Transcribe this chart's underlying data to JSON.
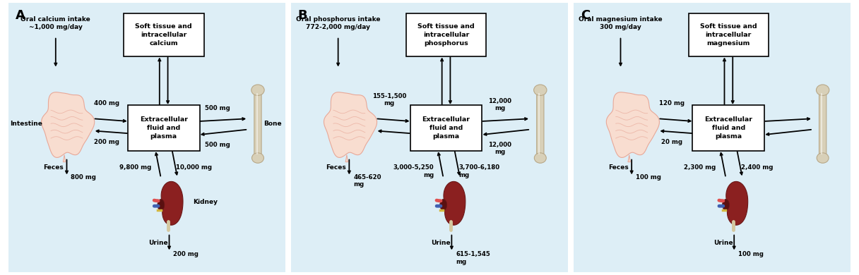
{
  "panels": [
    {
      "label": "A",
      "bg_color": "#ddeef6",
      "oral_intake": "Oral calcium intake\n~1,000 mg/day",
      "soft_tissue_box": "Soft tissue and\nintracellular\ncalcium",
      "ecf_box": "Extracellular\nfluid and\nplasma",
      "intestine_label": "Intestine",
      "bone_label": "Bone",
      "kidney_label": "Kidney",
      "feces_label": "Feces",
      "feces_val": "800 mg",
      "urine_label": "Urine",
      "urine_val": "200 mg",
      "int_to_ecf": "400 mg",
      "ecf_to_int": "200 mg",
      "ecf_to_bone": "500 mg",
      "bone_to_ecf": "500 mg",
      "ecf_to_kidney": "10,000 mg",
      "kidney_to_ecf": "9,800 mg",
      "show_intestine_label": true,
      "show_bone_label": true,
      "show_kidney_label": true
    },
    {
      "label": "B",
      "bg_color": "#ddeef6",
      "oral_intake": "Oral phosphorus intake\n772-2,000 mg/day",
      "soft_tissue_box": "Soft tissue and\nintracellular\nphosphorus",
      "ecf_box": "Extracellular\nfluid and\nplasma",
      "intestine_label": "",
      "bone_label": "",
      "kidney_label": "",
      "feces_label": "Feces",
      "feces_val": "465-620\nmg",
      "urine_label": "Urine",
      "urine_val": "615-1,545\nmg",
      "int_to_ecf": "155-1,500\nmg",
      "ecf_to_int": "",
      "ecf_to_bone": "12,000\nmg",
      "bone_to_ecf": "12,000\nmg",
      "ecf_to_kidney": "3,700-6,180\nmg",
      "kidney_to_ecf": "3,000-5,250\nmg",
      "show_intestine_label": false,
      "show_bone_label": false,
      "show_kidney_label": false
    },
    {
      "label": "C",
      "bg_color": "#ddeef6",
      "oral_intake": "Oral magnesium intake\n300 mg/day",
      "soft_tissue_box": "Soft tissue and\nintracellular\nmagnesium",
      "ecf_box": "Extracellular\nfluid and\nplasma",
      "intestine_label": "",
      "bone_label": "",
      "kidney_label": "",
      "feces_label": "Feces",
      "feces_val": "100 mg",
      "urine_label": "Urine",
      "urine_val": "100 mg",
      "int_to_ecf": "120 mg",
      "ecf_to_int": "20 mg",
      "ecf_to_bone": "",
      "bone_to_ecf": "",
      "ecf_to_kidney": "2,400 mg",
      "kidney_to_ecf": "2,300 mg",
      "show_intestine_label": false,
      "show_bone_label": false,
      "show_kidney_label": false
    }
  ],
  "intestine_color_outer": "#e8a898",
  "intestine_color_inner": "#f5c8b8",
  "intestine_color_fill": "#f8ddd0",
  "bone_color": "#d8d0b8",
  "bone_edge": "#b8a888",
  "kidney_color": "#8b2020",
  "kidney_dark": "#6b1818",
  "kidney_hilight": "#c04040",
  "vessel_red": "#e05050",
  "vessel_blue": "#4060b0",
  "vessel_yellow": "#d4b840",
  "text_color": "#000000",
  "arrow_color": "#000000"
}
